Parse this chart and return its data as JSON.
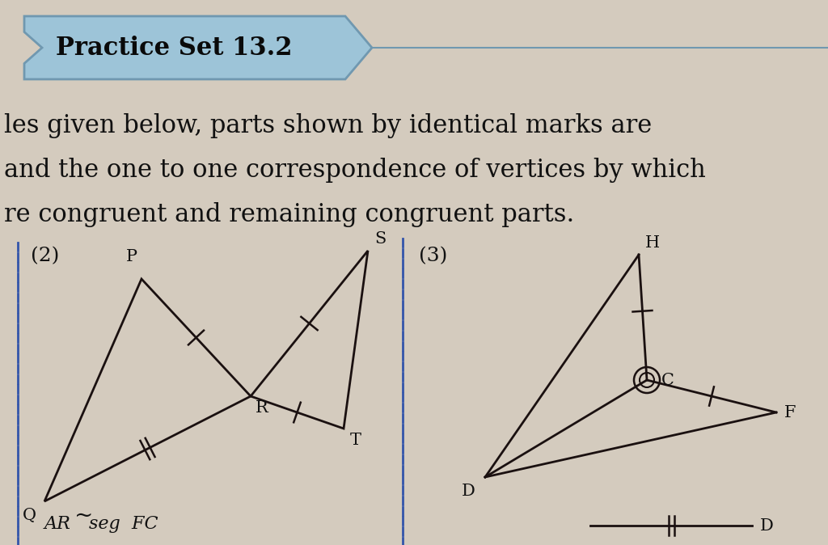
{
  "bg_color": "#d4cbbe",
  "title_text": "Practice Set 13.2",
  "title_bg": "#9dc4d8",
  "title_border": "#7098b0",
  "text_lines": [
    "les given below, parts shown by identical marks are",
    "and the one to one correspondence of vertices by which",
    "re congruent and remaining congruent parts."
  ],
  "label2": "(2)",
  "label3": "(3)",
  "line_color": "#1a1010",
  "text_color": "#111111",
  "dash_color": "#3355aa"
}
